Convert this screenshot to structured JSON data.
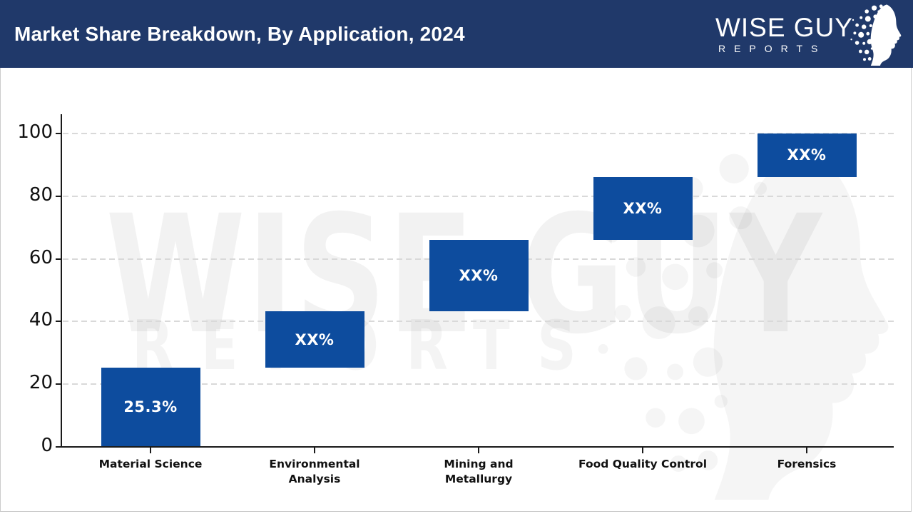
{
  "header": {
    "title": "Market Share Breakdown, By Application, 2024",
    "bg_color": "#20396a",
    "logo": {
      "line1": "WISE GUY",
      "line2": "REPORTS"
    }
  },
  "watermark": {
    "line1": "WISE GUY",
    "line2": "REPORTS"
  },
  "chart_data": {
    "type": "bar",
    "subtype": "waterfall",
    "title": "Market Share Breakdown, By Application, 2024",
    "xlabel": "",
    "ylabel": "",
    "categories": [
      "Material Science",
      "Environmental Analysis",
      "Mining and Metallurgy",
      "Food Quality Control",
      "Forensics"
    ],
    "segments": [
      {
        "category": "Material Science",
        "start": 0,
        "end": 25.3,
        "label": "25.3%"
      },
      {
        "category": "Environmental Analysis",
        "start": 25.3,
        "end": 43.2,
        "label": "XX%"
      },
      {
        "category": "Mining and Metallurgy",
        "start": 43.2,
        "end": 66,
        "label": "XX%"
      },
      {
        "category": "Food Quality Control",
        "start": 66,
        "end": 86.2,
        "label": "XX%"
      },
      {
        "category": "Forensics",
        "start": 86.2,
        "end": 100,
        "label": "XX%"
      }
    ],
    "yticks": [
      0,
      20,
      40,
      60,
      80,
      100
    ],
    "ylim": [
      0,
      106
    ],
    "grid": "dashed-horizontal",
    "legend": "none",
    "bar_color": "#0d4c9e",
    "bar_label_color": "#ffffff",
    "axis_color": "#1a1a1a"
  }
}
